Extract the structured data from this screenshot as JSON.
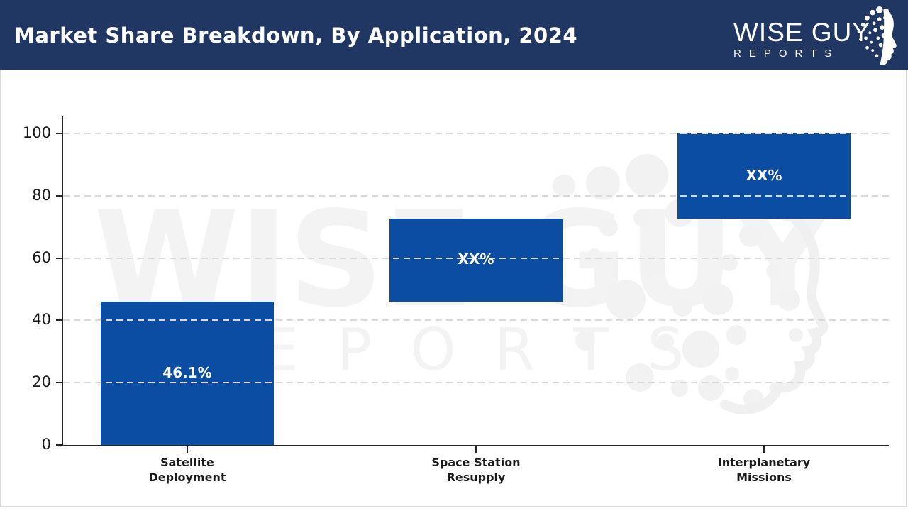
{
  "header": {
    "title": "Market Share Breakdown, By Application, 2024",
    "bg_color": "#213763",
    "logo": {
      "line1": "WISE GUY",
      "line2": "REPORTS"
    }
  },
  "watermark": {
    "line1": "WISE GUY",
    "line2": "R E P O R T S"
  },
  "chart_data": {
    "type": "bar",
    "subtype": "waterfall-stacked-segments",
    "title": "Market Share Breakdown, By Application, 2024",
    "categories": [
      [
        "Satellite",
        "Deployment"
      ],
      [
        "Space Station",
        "Resupply"
      ],
      [
        "Interplanetary",
        "Missions"
      ]
    ],
    "segments": [
      {
        "start": 0,
        "end": 46.1,
        "label": "46.1%"
      },
      {
        "start": 46.1,
        "end": 72.7,
        "label": "XX%"
      },
      {
        "start": 72.7,
        "end": 100,
        "label": "XX%"
      }
    ],
    "yticks": [
      0,
      20,
      40,
      60,
      80,
      100
    ],
    "ylim": [
      0,
      105.5
    ],
    "xlabel": "",
    "ylabel": "",
    "bar_color": "#0b4da2",
    "bar_label_color": "#ffffff",
    "grid": {
      "axis": "y",
      "style": "dashed",
      "color": "#d9d9d9",
      "over_bars": true
    },
    "legend": null
  }
}
